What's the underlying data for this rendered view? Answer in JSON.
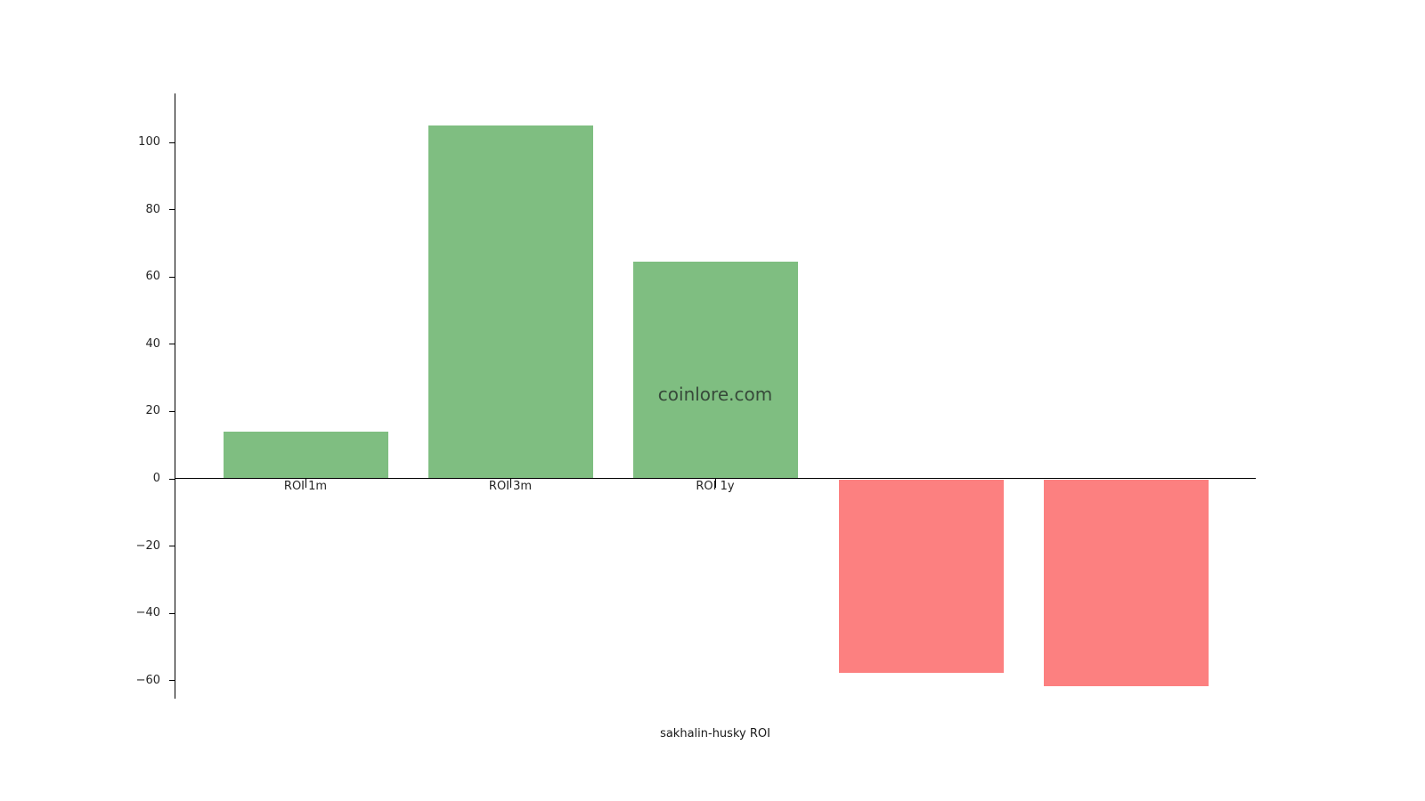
{
  "watermark": {
    "text": "coinlore.com",
    "color": "rgba(42,54,46,0.85)"
  },
  "chart_data": {
    "type": "bar",
    "title": "sakhalin-husky ROI",
    "xlabel": "",
    "ylabel": "",
    "categories": [
      "ROI 1m",
      "ROI 3m",
      "ROI 1y",
      "",
      ""
    ],
    "values": [
      13.9,
      104.9,
      64.6,
      -57.5,
      -61.4
    ],
    "bar_colors": [
      "#7fbe81",
      "#7fbe81",
      "#7fbe81",
      "#fc8080",
      "#fc8080"
    ],
    "positive_color": "#7fbe81",
    "negative_color": "#fc8080",
    "yticks": [
      100,
      80,
      60,
      40,
      20,
      0,
      -20,
      -40,
      -60
    ],
    "ylim": [
      -65.3,
      114.6
    ],
    "grid": false,
    "legend": null,
    "notes": "x tick labels for the two negative (red) bars are not visible in the image (hidden behind the bars)"
  }
}
